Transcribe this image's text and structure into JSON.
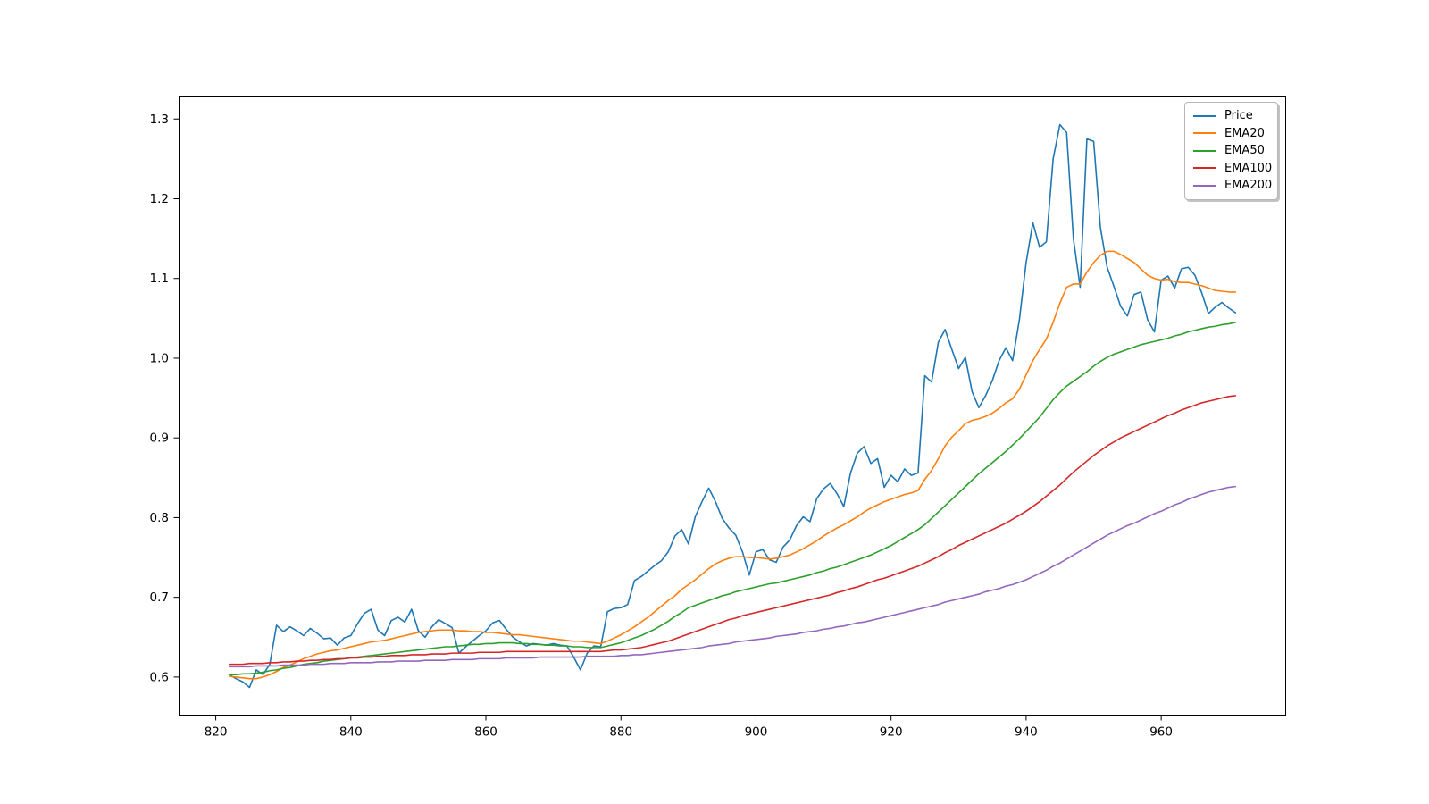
{
  "chart_data": {
    "type": "line",
    "title": "",
    "xlabel": "",
    "ylabel": "",
    "grid": false,
    "legend_position": "upper-right",
    "xlim": [
      814.5,
      978.5
    ],
    "ylim": [
      0.5517,
      1.3283
    ],
    "x_ticks": [
      820,
      840,
      860,
      880,
      900,
      920,
      940,
      960
    ],
    "x_tick_labels": [
      "820",
      "840",
      "860",
      "880",
      "900",
      "920",
      "940",
      "960"
    ],
    "y_ticks": [
      0.6,
      0.7,
      0.8,
      0.9,
      1.0,
      1.1,
      1.2,
      1.3
    ],
    "y_tick_labels": [
      "0.6",
      "0.7",
      "0.8",
      "0.9",
      "1.0",
      "1.1",
      "1.2",
      "1.3"
    ],
    "x_start": 822,
    "x_step": 1,
    "series": [
      {
        "name": "Price",
        "color": "#1f77b4",
        "values": [
          0.603,
          0.598,
          0.594,
          0.587,
          0.609,
          0.603,
          0.616,
          0.665,
          0.657,
          0.663,
          0.658,
          0.652,
          0.661,
          0.655,
          0.648,
          0.649,
          0.64,
          0.649,
          0.652,
          0.667,
          0.68,
          0.685,
          0.659,
          0.652,
          0.671,
          0.675,
          0.669,
          0.685,
          0.658,
          0.65,
          0.663,
          0.672,
          0.667,
          0.662,
          0.63,
          0.638,
          0.645,
          0.652,
          0.658,
          0.668,
          0.671,
          0.66,
          0.65,
          0.644,
          0.639,
          0.642,
          0.641,
          0.64,
          0.642,
          0.64,
          0.639,
          0.625,
          0.609,
          0.63,
          0.639,
          0.638,
          0.682,
          0.686,
          0.687,
          0.691,
          0.721,
          0.726,
          0.733,
          0.74,
          0.746,
          0.757,
          0.777,
          0.785,
          0.767,
          0.801,
          0.82,
          0.837,
          0.82,
          0.799,
          0.787,
          0.778,
          0.757,
          0.728,
          0.757,
          0.76,
          0.747,
          0.744,
          0.763,
          0.772,
          0.79,
          0.801,
          0.795,
          0.824,
          0.836,
          0.843,
          0.83,
          0.814,
          0.856,
          0.881,
          0.889,
          0.868,
          0.874,
          0.838,
          0.853,
          0.845,
          0.861,
          0.853,
          0.856,
          0.978,
          0.97,
          1.02,
          1.036,
          1.011,
          0.987,
          1.001,
          0.958,
          0.938,
          0.953,
          0.972,
          0.997,
          1.013,
          0.997,
          1.048,
          1.12,
          1.17,
          1.139,
          1.146,
          1.25,
          1.293,
          1.283,
          1.15,
          1.089,
          1.275,
          1.272,
          1.164,
          1.114,
          1.09,
          1.065,
          1.053,
          1.08,
          1.083,
          1.048,
          1.033,
          1.098,
          1.103,
          1.088,
          1.112,
          1.114,
          1.104,
          1.082,
          1.056,
          1.064,
          1.07,
          1.063,
          1.057
        ]
      },
      {
        "name": "EMA20",
        "color": "#ff7f0e",
        "values": [
          0.601,
          0.6,
          0.599,
          0.598,
          0.598,
          0.6,
          0.603,
          0.607,
          0.612,
          0.615,
          0.619,
          0.623,
          0.626,
          0.629,
          0.631,
          0.633,
          0.634,
          0.636,
          0.638,
          0.64,
          0.642,
          0.644,
          0.645,
          0.646,
          0.648,
          0.65,
          0.652,
          0.654,
          0.656,
          0.657,
          0.658,
          0.659,
          0.659,
          0.659,
          0.658,
          0.658,
          0.657,
          0.657,
          0.656,
          0.656,
          0.655,
          0.654,
          0.653,
          0.653,
          0.652,
          0.651,
          0.65,
          0.649,
          0.648,
          0.647,
          0.646,
          0.645,
          0.645,
          0.644,
          0.643,
          0.642,
          0.645,
          0.649,
          0.653,
          0.658,
          0.663,
          0.669,
          0.675,
          0.682,
          0.689,
          0.696,
          0.702,
          0.71,
          0.716,
          0.722,
          0.729,
          0.736,
          0.742,
          0.746,
          0.749,
          0.751,
          0.751,
          0.75,
          0.75,
          0.749,
          0.748,
          0.749,
          0.751,
          0.753,
          0.757,
          0.761,
          0.766,
          0.771,
          0.777,
          0.782,
          0.787,
          0.791,
          0.796,
          0.801,
          0.807,
          0.812,
          0.816,
          0.82,
          0.823,
          0.826,
          0.829,
          0.831,
          0.834,
          0.848,
          0.859,
          0.874,
          0.89,
          0.901,
          0.909,
          0.918,
          0.922,
          0.924,
          0.927,
          0.931,
          0.937,
          0.944,
          0.949,
          0.961,
          0.979,
          0.997,
          1.011,
          1.024,
          1.045,
          1.069,
          1.089,
          1.093,
          1.093,
          1.108,
          1.12,
          1.129,
          1.134,
          1.134,
          1.13,
          1.125,
          1.12,
          1.112,
          1.104,
          1.1,
          1.098,
          1.099,
          1.096,
          1.095,
          1.095,
          1.093,
          1.091,
          1.088,
          1.085,
          1.084,
          1.083,
          1.083
        ]
      },
      {
        "name": "EMA50",
        "color": "#2ca02c",
        "values": [
          0.603,
          0.603,
          0.604,
          0.604,
          0.605,
          0.606,
          0.608,
          0.609,
          0.611,
          0.612,
          0.614,
          0.616,
          0.617,
          0.618,
          0.62,
          0.621,
          0.622,
          0.623,
          0.624,
          0.625,
          0.626,
          0.627,
          0.628,
          0.629,
          0.63,
          0.631,
          0.632,
          0.633,
          0.634,
          0.635,
          0.636,
          0.637,
          0.638,
          0.638,
          0.639,
          0.64,
          0.641,
          0.641,
          0.642,
          0.642,
          0.643,
          0.643,
          0.643,
          0.642,
          0.642,
          0.641,
          0.641,
          0.64,
          0.64,
          0.639,
          0.639,
          0.638,
          0.638,
          0.637,
          0.637,
          0.637,
          0.639,
          0.641,
          0.643,
          0.646,
          0.649,
          0.652,
          0.656,
          0.66,
          0.665,
          0.67,
          0.676,
          0.681,
          0.687,
          0.69,
          0.693,
          0.696,
          0.699,
          0.702,
          0.704,
          0.707,
          0.709,
          0.711,
          0.713,
          0.715,
          0.717,
          0.718,
          0.72,
          0.722,
          0.724,
          0.726,
          0.728,
          0.731,
          0.733,
          0.736,
          0.738,
          0.741,
          0.744,
          0.747,
          0.75,
          0.753,
          0.757,
          0.761,
          0.765,
          0.77,
          0.775,
          0.78,
          0.785,
          0.791,
          0.799,
          0.807,
          0.815,
          0.823,
          0.831,
          0.839,
          0.847,
          0.855,
          0.862,
          0.869,
          0.876,
          0.883,
          0.891,
          0.899,
          0.908,
          0.917,
          0.926,
          0.937,
          0.948,
          0.957,
          0.965,
          0.971,
          0.977,
          0.983,
          0.99,
          0.996,
          1.001,
          1.005,
          1.008,
          1.011,
          1.014,
          1.017,
          1.019,
          1.021,
          1.023,
          1.025,
          1.028,
          1.03,
          1.033,
          1.035,
          1.037,
          1.039,
          1.04,
          1.042,
          1.043,
          1.045
        ]
      },
      {
        "name": "EMA100",
        "color": "#d62728",
        "values": [
          0.616,
          0.616,
          0.616,
          0.617,
          0.617,
          0.617,
          0.618,
          0.618,
          0.619,
          0.619,
          0.62,
          0.62,
          0.621,
          0.621,
          0.622,
          0.622,
          0.623,
          0.623,
          0.624,
          0.624,
          0.625,
          0.625,
          0.626,
          0.626,
          0.627,
          0.627,
          0.627,
          0.628,
          0.628,
          0.628,
          0.629,
          0.629,
          0.629,
          0.63,
          0.63,
          0.63,
          0.63,
          0.631,
          0.631,
          0.631,
          0.631,
          0.632,
          0.632,
          0.632,
          0.632,
          0.632,
          0.632,
          0.632,
          0.632,
          0.632,
          0.632,
          0.632,
          0.632,
          0.632,
          0.632,
          0.632,
          0.633,
          0.634,
          0.634,
          0.635,
          0.636,
          0.637,
          0.639,
          0.641,
          0.643,
          0.645,
          0.648,
          0.651,
          0.654,
          0.657,
          0.66,
          0.663,
          0.666,
          0.669,
          0.672,
          0.674,
          0.677,
          0.679,
          0.681,
          0.683,
          0.685,
          0.687,
          0.689,
          0.691,
          0.693,
          0.695,
          0.697,
          0.699,
          0.701,
          0.703,
          0.706,
          0.708,
          0.711,
          0.713,
          0.716,
          0.719,
          0.722,
          0.724,
          0.727,
          0.73,
          0.733,
          0.736,
          0.739,
          0.743,
          0.747,
          0.751,
          0.756,
          0.76,
          0.765,
          0.769,
          0.773,
          0.777,
          0.781,
          0.785,
          0.789,
          0.793,
          0.798,
          0.803,
          0.808,
          0.814,
          0.82,
          0.827,
          0.834,
          0.841,
          0.849,
          0.857,
          0.864,
          0.871,
          0.878,
          0.884,
          0.89,
          0.895,
          0.9,
          0.904,
          0.908,
          0.912,
          0.916,
          0.92,
          0.924,
          0.928,
          0.931,
          0.935,
          0.938,
          0.941,
          0.944,
          0.946,
          0.948,
          0.95,
          0.952,
          0.953
        ]
      },
      {
        "name": "EMA200",
        "color": "#9467bd",
        "values": [
          0.613,
          0.613,
          0.613,
          0.613,
          0.614,
          0.614,
          0.614,
          0.614,
          0.615,
          0.615,
          0.615,
          0.615,
          0.616,
          0.616,
          0.616,
          0.617,
          0.617,
          0.617,
          0.618,
          0.618,
          0.618,
          0.618,
          0.619,
          0.619,
          0.619,
          0.62,
          0.62,
          0.62,
          0.62,
          0.621,
          0.621,
          0.621,
          0.621,
          0.622,
          0.622,
          0.622,
          0.622,
          0.623,
          0.623,
          0.623,
          0.623,
          0.624,
          0.624,
          0.624,
          0.624,
          0.624,
          0.625,
          0.625,
          0.625,
          0.625,
          0.625,
          0.625,
          0.625,
          0.626,
          0.626,
          0.626,
          0.626,
          0.626,
          0.627,
          0.627,
          0.628,
          0.628,
          0.629,
          0.63,
          0.631,
          0.632,
          0.633,
          0.634,
          0.635,
          0.636,
          0.637,
          0.639,
          0.64,
          0.641,
          0.642,
          0.644,
          0.645,
          0.646,
          0.647,
          0.648,
          0.649,
          0.651,
          0.652,
          0.653,
          0.654,
          0.656,
          0.657,
          0.658,
          0.66,
          0.661,
          0.663,
          0.664,
          0.666,
          0.668,
          0.669,
          0.671,
          0.673,
          0.675,
          0.677,
          0.679,
          0.681,
          0.683,
          0.685,
          0.687,
          0.689,
          0.691,
          0.694,
          0.696,
          0.698,
          0.7,
          0.702,
          0.704,
          0.707,
          0.709,
          0.711,
          0.714,
          0.716,
          0.719,
          0.722,
          0.726,
          0.73,
          0.734,
          0.739,
          0.743,
          0.748,
          0.753,
          0.758,
          0.763,
          0.768,
          0.773,
          0.778,
          0.782,
          0.786,
          0.79,
          0.793,
          0.797,
          0.801,
          0.805,
          0.808,
          0.812,
          0.816,
          0.819,
          0.823,
          0.826,
          0.829,
          0.832,
          0.834,
          0.836,
          0.838,
          0.839
        ]
      }
    ]
  }
}
